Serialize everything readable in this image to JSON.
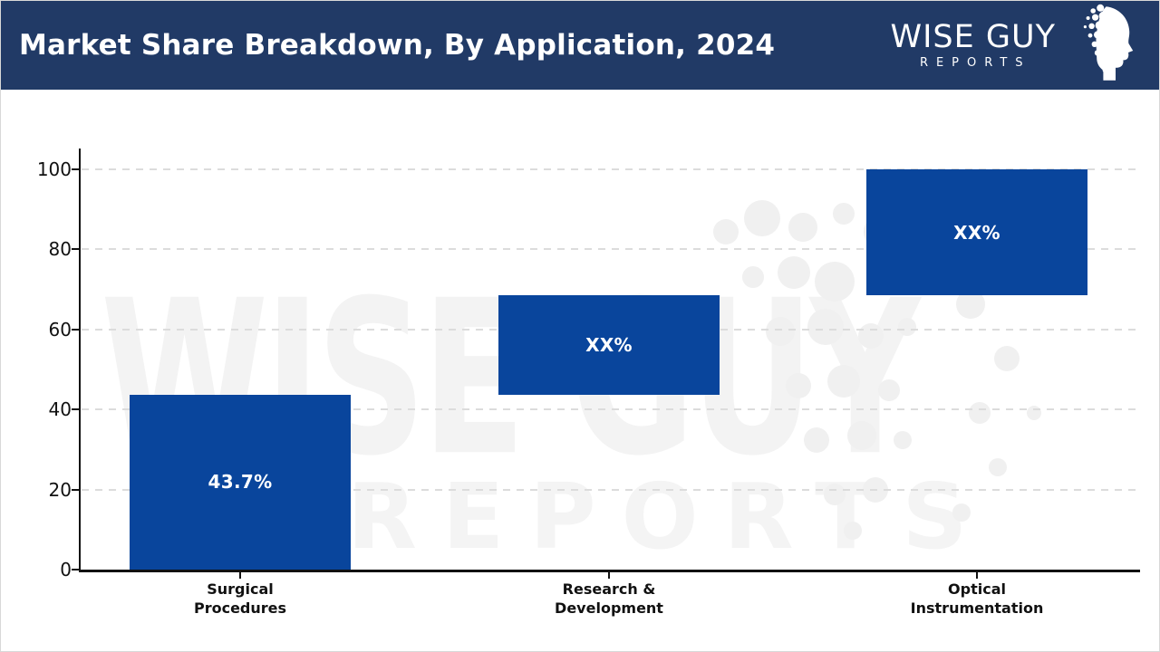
{
  "header": {
    "title": "Market Share Breakdown, By Application, 2024",
    "brand": {
      "name": "WISE GUY",
      "sub": "REPORTS"
    }
  },
  "watermark": {
    "line1": "WISE GUY",
    "line2": "REPORTS"
  },
  "chart_data": {
    "type": "bar",
    "subtype": "floating-waterfall",
    "title": "Market Share Breakdown, By Application, 2024",
    "categories": [
      "Surgical\nProcedures",
      "Research &\nDevelopment",
      "Optical\nInstrumentation"
    ],
    "segments": [
      {
        "category": "Surgical Procedures",
        "start": 0,
        "end": 43.7,
        "label": "43.7%"
      },
      {
        "category": "Research & Development",
        "start": 43.7,
        "end": 68.5,
        "label": "XX%"
      },
      {
        "category": "Optical Instrumentation",
        "start": 68.5,
        "end": 100,
        "label": "XX%"
      }
    ],
    "ylim": [
      0,
      100
    ],
    "yticks": [
      0,
      20,
      40,
      60,
      80,
      100
    ],
    "grid": "horizontal-dashed",
    "legend": "none",
    "xlabel": "",
    "ylabel": ""
  },
  "colors": {
    "header_bg": "#213a66",
    "bar": "#09459c",
    "bar_label": "#ffffff",
    "axis": "#111111",
    "grid": "#dcdcdc",
    "watermark": "#f3f3f3"
  }
}
